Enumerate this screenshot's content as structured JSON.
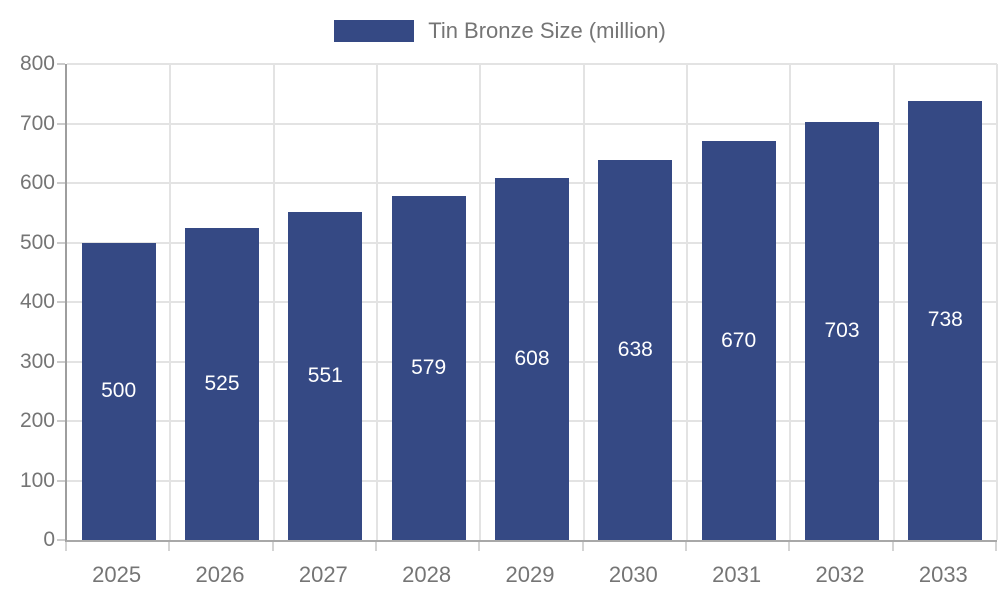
{
  "chart_data": {
    "type": "bar",
    "title": "",
    "legend": {
      "label": "Tin Bronze Size (million)",
      "position": "top-center"
    },
    "categories": [
      "2025",
      "2026",
      "2027",
      "2028",
      "2029",
      "2030",
      "2031",
      "2032",
      "2033"
    ],
    "values": [
      500,
      525,
      551,
      579,
      608,
      638,
      670,
      703,
      738
    ],
    "value_labels_shown": true,
    "value_label_position": "inside-center",
    "xlabel": "",
    "ylabel": "",
    "ylim": [
      0,
      800
    ],
    "yticks": [
      0,
      100,
      200,
      300,
      400,
      500,
      600,
      700,
      800
    ],
    "grid": true,
    "colors": {
      "bar": "#354984",
      "value_label": "#ffffff",
      "axis_text": "#757575",
      "legend_text": "#757575",
      "gridline": "#e3e3e3",
      "axis_line": "#9e9e9e",
      "background": "#ffffff"
    }
  }
}
